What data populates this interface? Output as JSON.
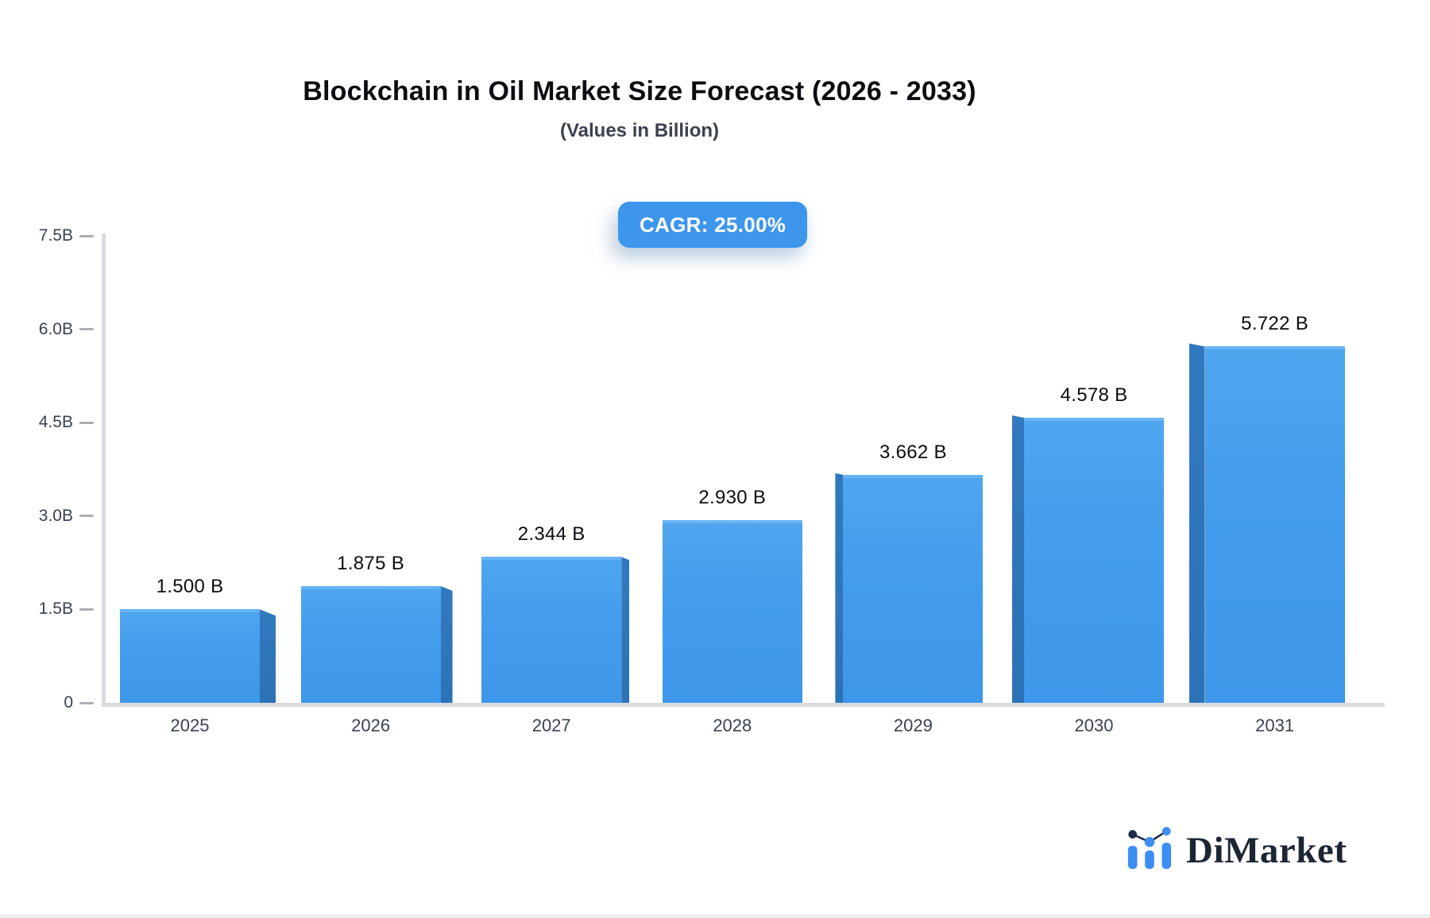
{
  "header": {
    "title": "Blockchain in Oil Market Size Forecast (2026 - 2033)",
    "subtitle": "(Values in Billion)"
  },
  "badge": {
    "label": "CAGR: 25.00%",
    "background": "#3d96ec",
    "text_color": "#ffffff"
  },
  "chart_data": {
    "type": "bar",
    "categories": [
      "2025",
      "2026",
      "2027",
      "2028",
      "2029",
      "2030",
      "2031"
    ],
    "values": [
      1.5,
      1.875,
      2.344,
      2.93,
      3.662,
      4.578,
      5.722
    ],
    "value_labels": [
      "1.500 B",
      "1.875 B",
      "2.344 B",
      "2.930 B",
      "3.662 B",
      "4.578 B",
      "5.722 B"
    ],
    "title": "Blockchain in Oil Market Size Forecast (2026 - 2033)",
    "subtitle": "(Values in Billion)",
    "xlabel": "",
    "ylabel": "",
    "ylim": [
      0,
      7.5
    ],
    "yticks": {
      "values": [
        0,
        1.5,
        3.0,
        4.5,
        6.0,
        7.5
      ],
      "labels": [
        "0",
        "1.5B",
        "3.0B",
        "4.5B",
        "6.0B",
        "7.5B"
      ]
    },
    "grid": false,
    "legend": false,
    "style": "3d-extruded-bars",
    "colors": {
      "bar_face_top": "#4fa6ef",
      "bar_face_bottom": "#3e97ea",
      "bar_side": "#2e76bb",
      "axis_line": "#d8dadd",
      "tick_dash": "#a9aeb6",
      "tick_text": "#3a4150",
      "value_text": "#0a0c0f"
    }
  },
  "logo": {
    "text": "DiMarket",
    "icon": "bar-chart-logo-icon",
    "text_color": "#1c2633",
    "icon_blue": "#3d8ef2",
    "icon_navy": "#1f2c47"
  }
}
